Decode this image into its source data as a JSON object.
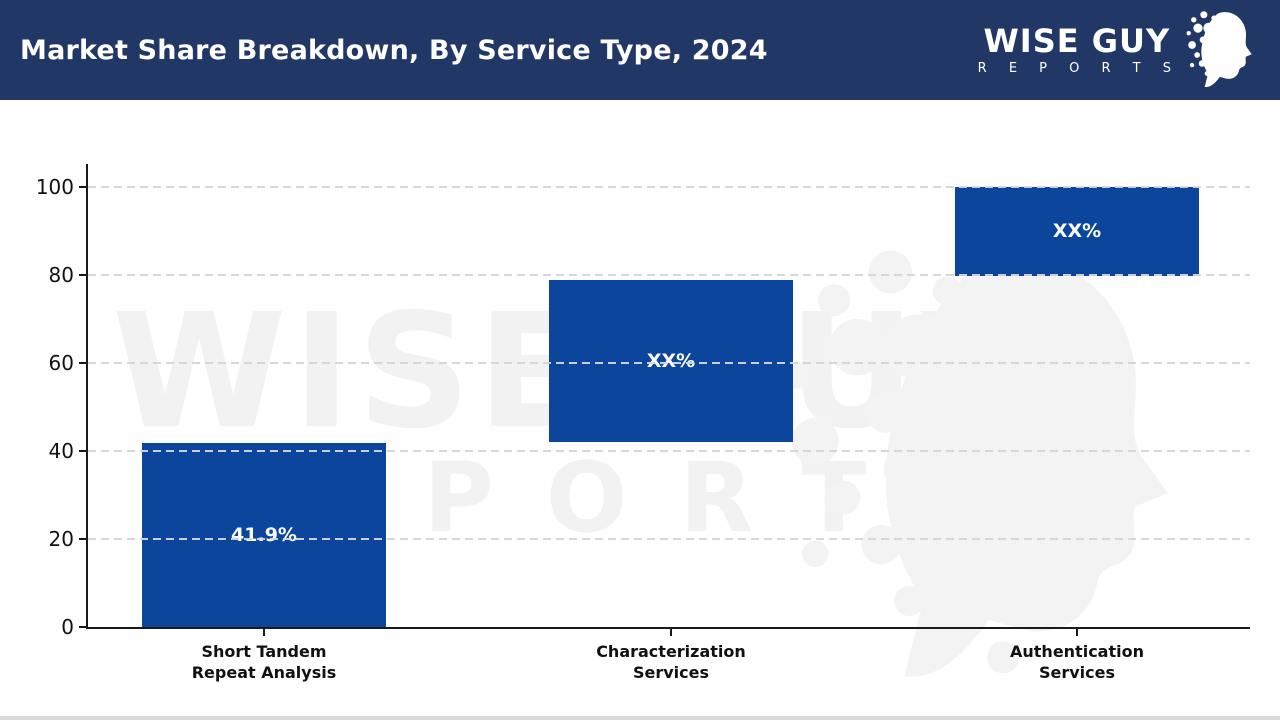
{
  "header": {
    "title": "Market Share Breakdown, By Service Type, 2024",
    "logo": {
      "line1": "WISE GUY",
      "line2": "R E P O R T S"
    }
  },
  "watermark": {
    "line1": "WISE GUY",
    "line2": "REPORTS"
  },
  "chart_data": {
    "type": "bar",
    "subtype": "floating-breakdown-waterfall",
    "title": "Market Share Breakdown, By Service Type, 2024",
    "categories": [
      {
        "line1": "Short Tandem",
        "line2": "Repeat Analysis"
      },
      {
        "line1": "Characterization",
        "line2": "Services"
      },
      {
        "line1": "Authentication",
        "line2": "Services"
      }
    ],
    "bars": [
      {
        "category": "Short Tandem Repeat Analysis",
        "start": 0,
        "end": 41.9,
        "label": "41.9%"
      },
      {
        "category": "Characterization Services",
        "start": 42,
        "end": 78.9,
        "label": "XX%"
      },
      {
        "category": "Authentication Services",
        "start": 79.8,
        "end": 100,
        "label": "XX%"
      }
    ],
    "ylim": [
      0,
      100
    ],
    "yticks": [
      0,
      20,
      40,
      60,
      80,
      100
    ],
    "xlabel": "",
    "ylabel": "",
    "grid": "horizontal-dashed",
    "legend": "none",
    "colors": {
      "bar": "#0b469c",
      "bar_label": "#ffffff",
      "header_bg": "#213765",
      "axis": "#1a1a1a",
      "gridline": "#d5d5d5",
      "watermark": "#f2f2f2"
    }
  }
}
